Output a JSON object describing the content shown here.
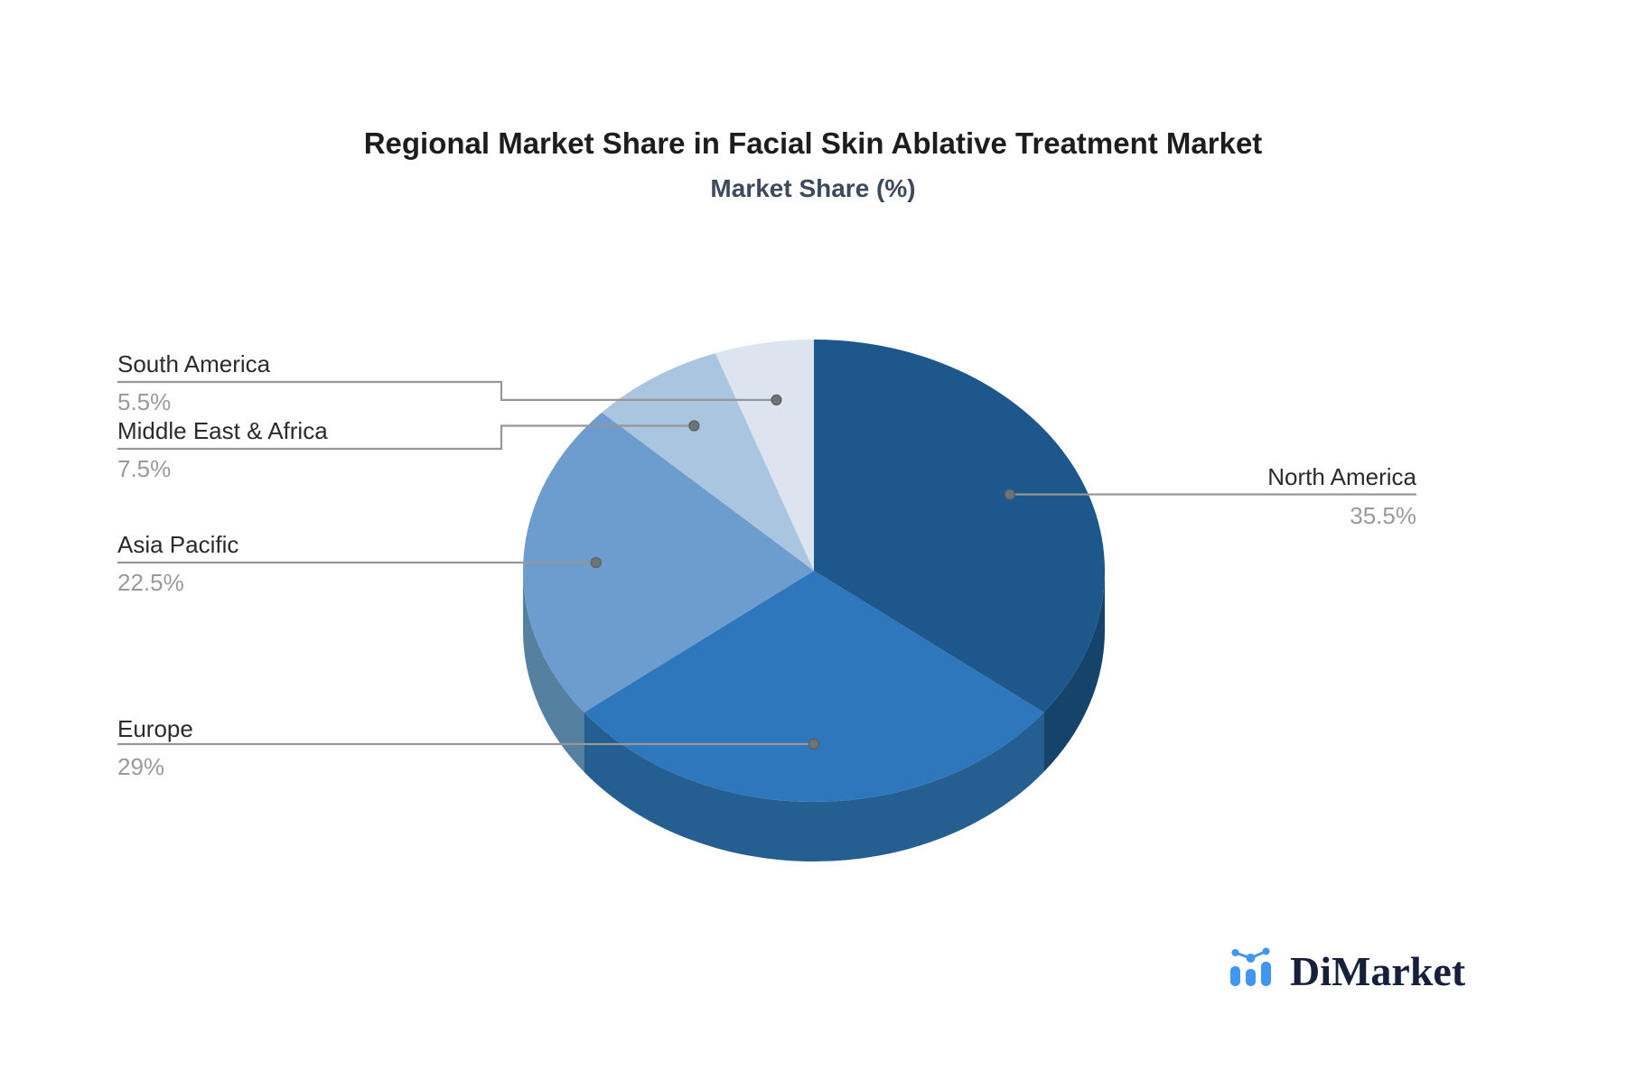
{
  "page": {
    "title": "Regional Market Share in Facial Skin Ablative Treatment Market",
    "subtitle": "Market Share (%)"
  },
  "chart_data": {
    "type": "pie",
    "title": "Regional Market Share in Facial Skin Ablative Treatment Market",
    "subtitle": "Market Share (%)",
    "unit": "%",
    "style": "3d-pie",
    "start_angle_deg": 0,
    "direction": "clockwise",
    "legend_position": "callout-labels",
    "slices": [
      {
        "label": "North America",
        "value": 35.5,
        "display": "35.5%",
        "color": "#1d578c",
        "side_color": "#16436a"
      },
      {
        "label": "Europe",
        "value": 29,
        "display": "29%",
        "color": "#2e77bc",
        "side_color": "#255e90"
      },
      {
        "label": "Asia Pacific",
        "value": 22.5,
        "display": "22.5%",
        "color": "#6d9dcf",
        "side_color": "#56809f"
      },
      {
        "label": "Middle East & Africa",
        "value": 7.5,
        "display": "7.5%",
        "color": "#aac5e0",
        "side_color": "#8aa9c4"
      },
      {
        "label": "South America",
        "value": 5.5,
        "display": "5.5%",
        "color": "#dce4ef",
        "side_color": "#b8c4d4"
      }
    ],
    "callout_line_color": "#979797",
    "callout_dot_color": "#6f7377"
  },
  "branding": {
    "logo_text": "DiMarket",
    "logo_icon": "bar-chart-trend-icon",
    "logo_text_color": "#16203a",
    "logo_accent_color": "#4197f0"
  }
}
